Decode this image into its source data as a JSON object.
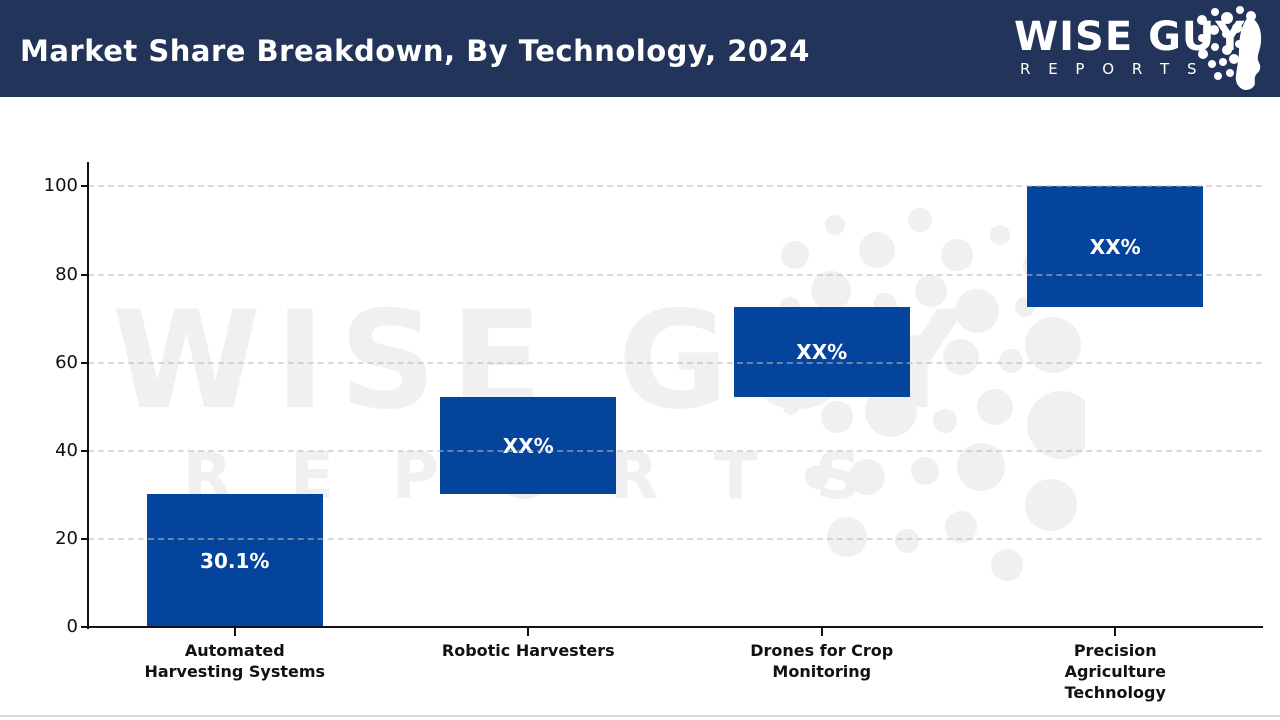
{
  "header": {
    "title": "Market Share Breakdown, By Technology, 2024",
    "bg_color": "#23345a",
    "logo": {
      "line1": "WISE GUY",
      "line2": "R E P O R T S",
      "icon": "dotted-face-profile"
    }
  },
  "watermark": {
    "line1": "WISE GUY",
    "line2": "REPORTS",
    "icon": "dotted-face-profile",
    "color": "#f0f0f2"
  },
  "chart_data": {
    "type": "bar",
    "subtype": "waterfall",
    "title": "Market Share Breakdown, By Technology, 2024",
    "xlabel": "",
    "ylabel": "",
    "ylim": [
      0,
      106
    ],
    "yticks": [
      0,
      20,
      40,
      60,
      80,
      100
    ],
    "grid": true,
    "legend": false,
    "bar_color": "#04449c",
    "bar_label_color": "#ffffff",
    "categories": [
      "Automated Harvesting Systems",
      "Robotic Harvesters",
      "Drones for Crop Monitoring",
      "Precision Agriculture Technology"
    ],
    "category_label_lines": [
      [
        "Automated",
        "Harvesting Systems"
      ],
      [
        "Robotic Harvesters"
      ],
      [
        "Drones for Crop",
        "Monitoring"
      ],
      [
        "Precision",
        "Agriculture",
        "Technology"
      ]
    ],
    "segments": [
      {
        "category": "Automated Harvesting Systems",
        "start": 0,
        "end": 30.1,
        "label": "30.1%"
      },
      {
        "category": "Robotic Harvesters",
        "start": 30.1,
        "end": 52.1,
        "label": "XX%"
      },
      {
        "category": "Drones for Crop Monitoring",
        "start": 52.1,
        "end": 72.7,
        "label": "XX%"
      },
      {
        "category": "Precision Agriculture Technology",
        "start": 72.7,
        "end": 100,
        "label": "XX%"
      }
    ]
  }
}
